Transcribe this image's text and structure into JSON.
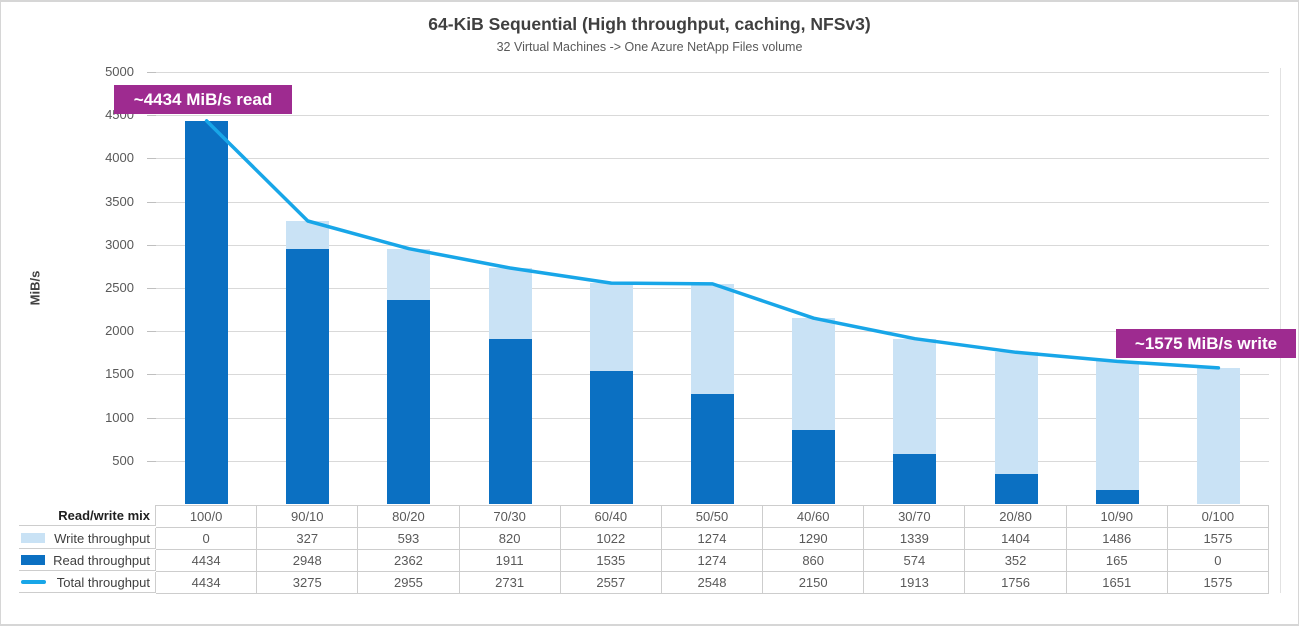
{
  "header": {
    "title": "64-KiB Sequential (High throughput, caching, NFSv3)",
    "subtitle": "32 Virtual Machines -> One Azure NetApp Files volume"
  },
  "y_axis": {
    "label": "MiB/s",
    "ticks": [
      5000,
      4500,
      4000,
      3500,
      3000,
      2500,
      2000,
      1500,
      1000,
      500
    ]
  },
  "callouts": {
    "read": "~4434 MiB/s read",
    "write": "~1575 MiB/s write"
  },
  "colors": {
    "read_bar": "#0B70C2",
    "write_bar": "#C9E2F5",
    "total_line": "#18A6E8",
    "callout_bg": "#9E2B90",
    "gridline": "#D9D9D9"
  },
  "chart_data": {
    "type": "bar",
    "subtype": "stacked-bars-with-total-line",
    "title": "64-KiB Sequential (High throughput, caching, NFSv3)",
    "subtitle": "32 Virtual Machines -> One Azure NetApp Files volume",
    "categories_label": "Read/write mix",
    "categories": [
      "100/0",
      "90/10",
      "80/20",
      "70/30",
      "60/40",
      "50/50",
      "40/60",
      "30/70",
      "20/80",
      "10/90",
      "0/100"
    ],
    "series": [
      {
        "name": "Write throughput",
        "role": "bar-stack-top",
        "color": "#C9E2F5",
        "values": [
          0,
          327,
          593,
          820,
          1022,
          1274,
          1290,
          1339,
          1404,
          1486,
          1575
        ]
      },
      {
        "name": "Read throughput",
        "role": "bar-stack-bottom",
        "color": "#0B70C2",
        "values": [
          4434,
          2948,
          2362,
          1911,
          1535,
          1274,
          860,
          574,
          352,
          165,
          0
        ]
      },
      {
        "name": "Total throughput",
        "role": "line",
        "color": "#18A6E8",
        "values": [
          4434,
          3275,
          2955,
          2731,
          2557,
          2548,
          2150,
          1913,
          1756,
          1651,
          1575
        ]
      }
    ],
    "ylabel": "MiB/s",
    "ylim": [
      0,
      5000
    ],
    "y_tick_step": 500,
    "grid": true,
    "legend_position": "table-rows"
  }
}
